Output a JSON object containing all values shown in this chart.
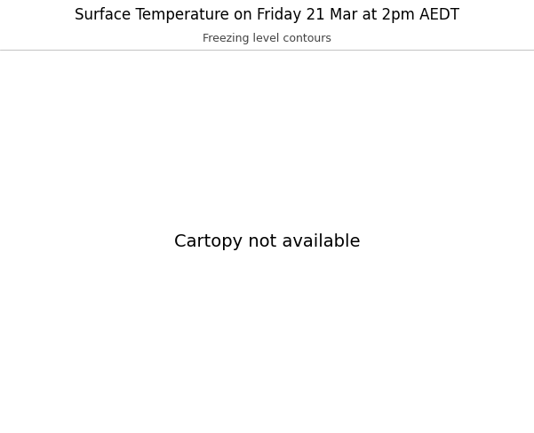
{
  "title": "Surface Temperature on Friday 21 Mar at 2pm AEDT",
  "subtitle": "Freezing level contours",
  "title_fontsize": 12,
  "subtitle_fontsize": 9,
  "ocean_color": "#c8d4e8",
  "fig_width": 6.01,
  "fig_height": 4.88,
  "dpi": 100,
  "extent": [
    100,
    185,
    -55,
    -5
  ],
  "contour_color": "#cc0000",
  "contour_lw": 1.1,
  "label_fontsize": 6.5,
  "grid_color": "#9aaabb",
  "grid_lw": 0.4,
  "land_base_color": "#cc2200",
  "aus_brown": "#b85500",
  "aus_orange": "#cc6600",
  "aus_yellow": "#ddaa00",
  "aus_bright_yellow": "#ffee22",
  "nz_color": "#cc7700",
  "nz_bright": "#ee9900",
  "small_island_color": "#cc6600"
}
